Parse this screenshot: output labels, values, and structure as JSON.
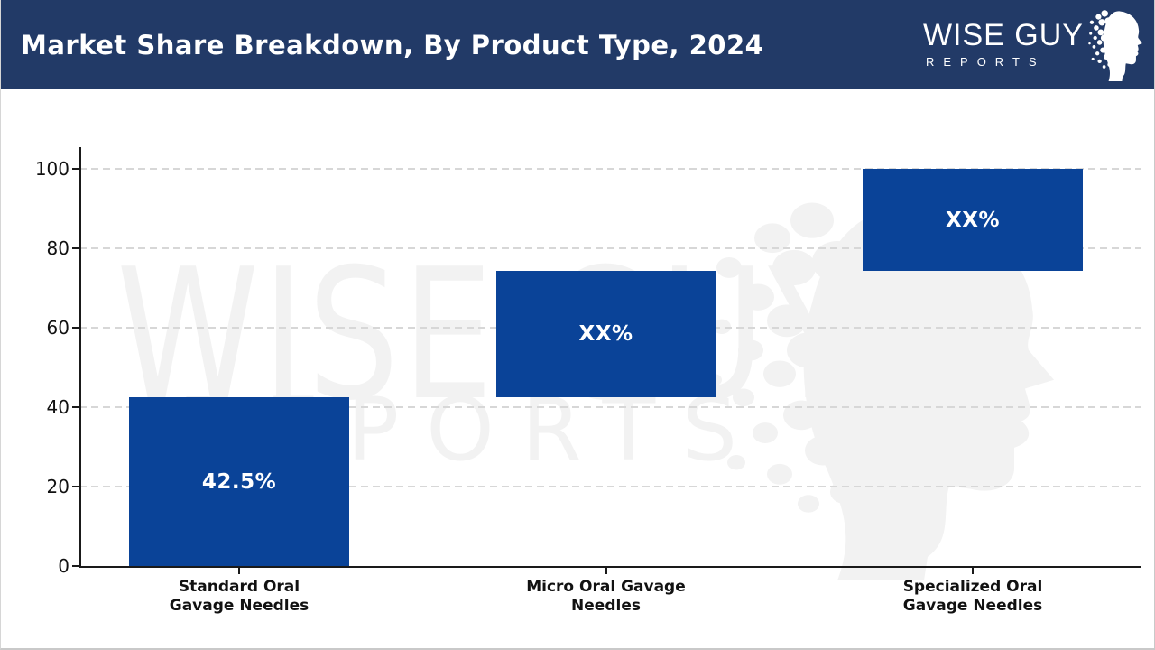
{
  "header": {
    "title": "Market Share Breakdown, By Product Type, 2024"
  },
  "logo": {
    "wordmark": "WISE GUY",
    "subtext": "REPORTS",
    "face_icon": "dotted-head-profile"
  },
  "watermark": {
    "wordmark": "WISE GUY",
    "subtext": "REPORTS"
  },
  "colors": {
    "header_bg": "#223a67",
    "bar": "#0a4398",
    "grid": "#d7d7d7",
    "axis": "#1a1a1a",
    "watermark": "#f2f2f2",
    "title_text": "#ffffff",
    "value_label_text": "#ffffff"
  },
  "chart_data": {
    "type": "bar",
    "variant": "stacked-waterfall: each bar begins at the cumulative top of the previous bar",
    "title": "Market Share Breakdown, By Product Type, 2024",
    "xlabel": "",
    "ylabel": "",
    "categories": [
      "Standard Oral Gavage Needles",
      "Micro Oral Gavage Needles",
      "Specialized Oral Gavage Needles"
    ],
    "categories_wrapped": [
      [
        "Standard Oral",
        "Gavage Needles"
      ],
      [
        "Micro Oral Gavage",
        "Needles"
      ],
      [
        "Specialized Oral",
        "Gavage Needles"
      ]
    ],
    "segments": [
      {
        "category": "Standard Oral Gavage Needles",
        "label": "42.5%",
        "value": 42.5,
        "start": 0,
        "end": 42.5
      },
      {
        "category": "Micro Oral Gavage Needles",
        "label": "XX%",
        "value": 31.8,
        "start": 42.5,
        "end": 74.3
      },
      {
        "category": "Specialized Oral Gavage Needles",
        "label": "XX%",
        "value": 25.7,
        "start": 74.3,
        "end": 100
      }
    ],
    "yticks": [
      0,
      20,
      40,
      60,
      80,
      100
    ],
    "ylim": [
      0,
      105.5
    ],
    "grid": "horizontal dashed, light gray",
    "legend": "none"
  }
}
